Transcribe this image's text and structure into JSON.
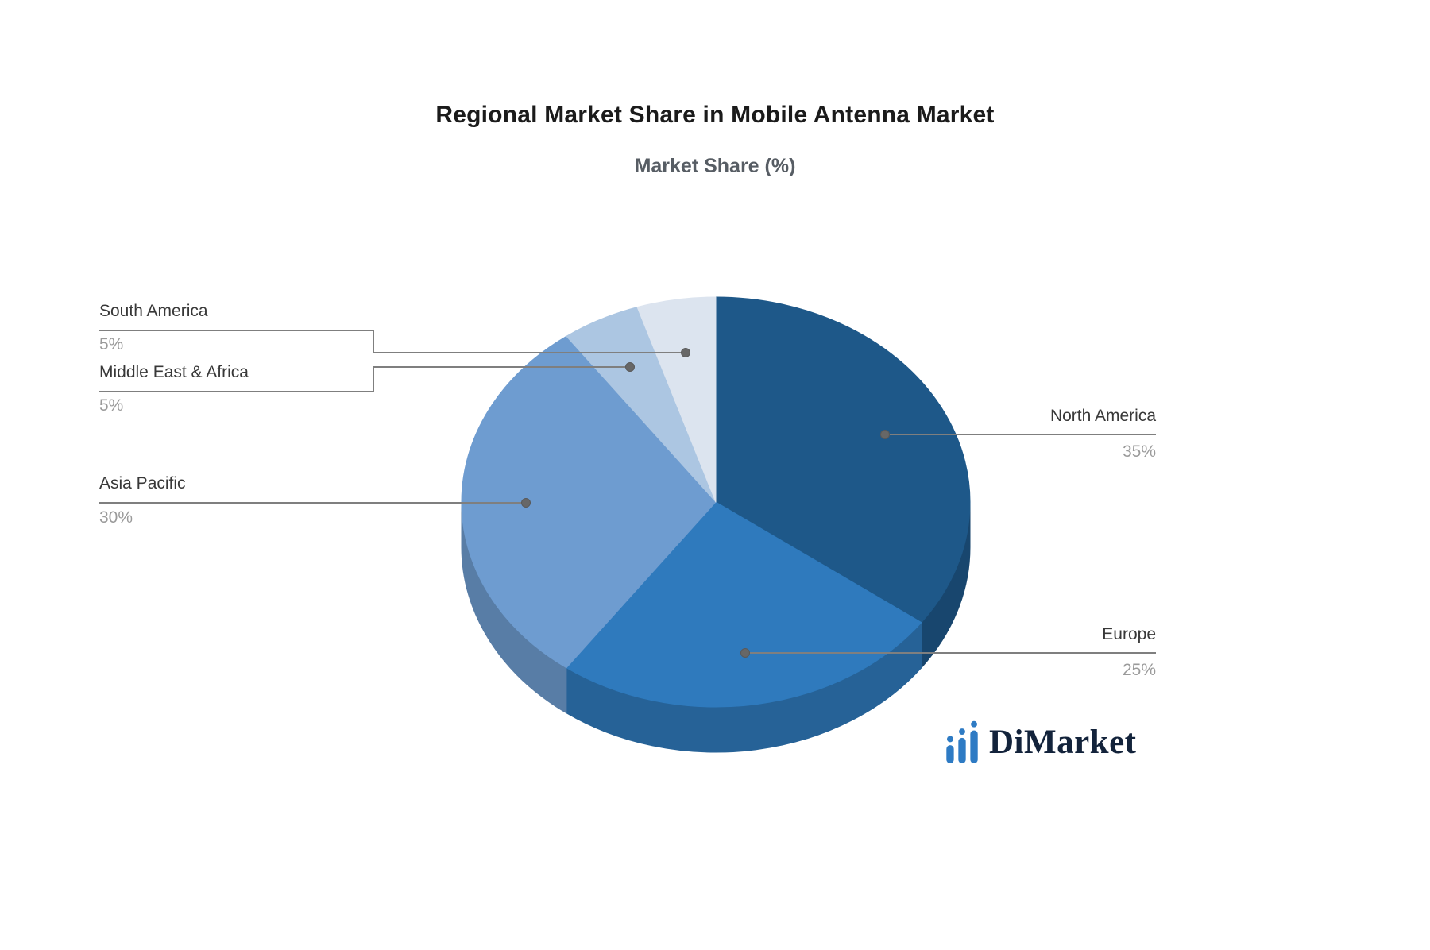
{
  "title": "Regional Market Share in Mobile Antenna Market",
  "subtitle": "Market Share (%)",
  "logo": {
    "text": "DiMarket",
    "text_color": "#13233b",
    "icon_color": "#2e7bc4",
    "icon": "bar-chart-icon"
  },
  "chart_data": {
    "type": "pie",
    "style": "3d",
    "title": "Regional Market Share in Mobile Antenna Market",
    "subtitle": "Market Share (%)",
    "unit": "%",
    "direction": "clockwise",
    "start_angle_deg": 0,
    "legend_position": "callout-labels",
    "leader_color": "#7f7f7f",
    "dot_color": "#676767",
    "slices": [
      {
        "label": "North America",
        "value": 35,
        "display": "35%",
        "color": "#1e5889"
      },
      {
        "label": "Europe",
        "value": 25,
        "display": "25%",
        "color": "#2f7abd"
      },
      {
        "label": "Asia Pacific",
        "value": 30,
        "display": "30%",
        "color": "#6e9cd0"
      },
      {
        "label": "Middle East & Africa",
        "value": 5,
        "display": "5%",
        "color": "#acc6e2"
      },
      {
        "label": "South America",
        "value": 5,
        "display": "5%",
        "color": "#dce4ef"
      }
    ]
  }
}
